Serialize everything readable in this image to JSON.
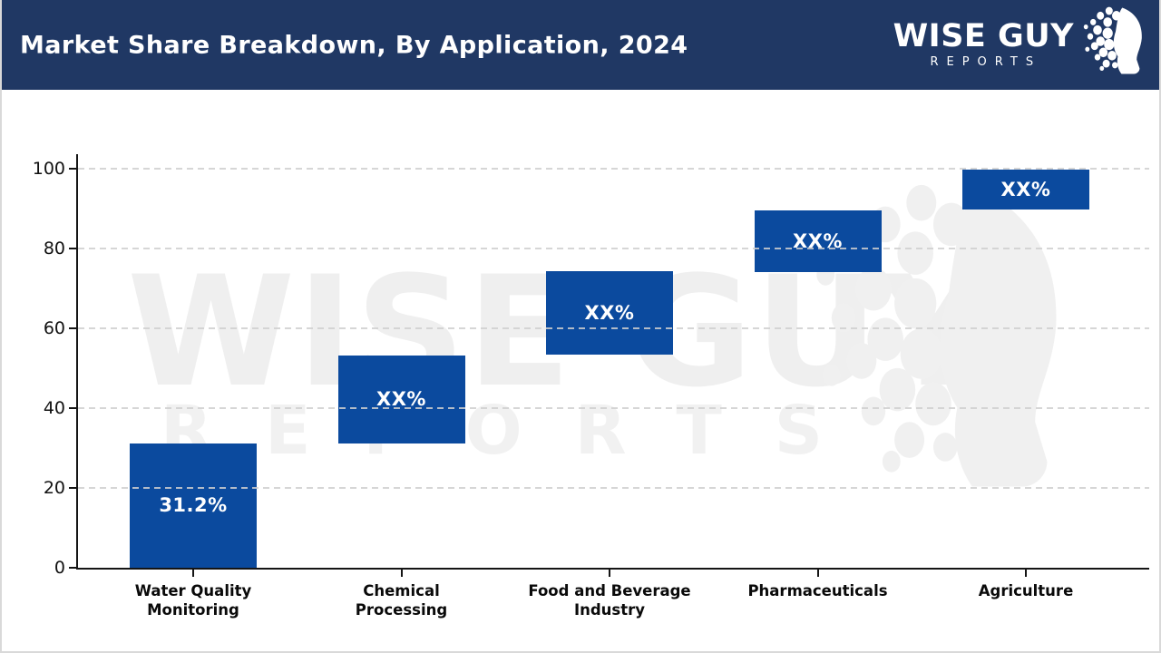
{
  "header": {
    "title": "Market Share Breakdown, By Application, 2024",
    "brand_line1": "WISE GUY",
    "brand_line2": "REPORTS"
  },
  "watermark": {
    "line1": "WISE GUY",
    "line2": "REPORTS"
  },
  "chart_data": {
    "type": "bar",
    "subtype": "waterfall",
    "title": "Market Share Breakdown, By Application, 2024",
    "xlabel": "",
    "ylabel": "",
    "categories": [
      [
        "Water Quality",
        "Monitoring"
      ],
      [
        "Chemical",
        "Processing"
      ],
      [
        "Food and Beverage",
        "Industry"
      ],
      [
        "Pharmaceuticals"
      ],
      [
        "Agriculture"
      ]
    ],
    "segments": [
      {
        "label": "31.2%",
        "start": 0,
        "end": 31.2
      },
      {
        "label": "XX%",
        "start": 31.2,
        "end": 53.2
      },
      {
        "label": "XX%",
        "start": 53.5,
        "end": 74.3
      },
      {
        "label": "XX%",
        "start": 74.2,
        "end": 89.5
      },
      {
        "label": "XX%",
        "start": 89.8,
        "end": 99.8
      }
    ],
    "segment_heights_estimated": [
      31.2,
      22,
      20.8,
      15.3,
      10
    ],
    "yticks": [
      0,
      20,
      40,
      60,
      80,
      100
    ],
    "ylim": [
      0,
      104
    ],
    "grid": {
      "axis": "y",
      "style": "dashed",
      "color": "#cfcfcf"
    },
    "legend": "none",
    "bar_color": "#0b4a9e",
    "bar_label_color": "#ffffff",
    "header_color": "#203864"
  }
}
